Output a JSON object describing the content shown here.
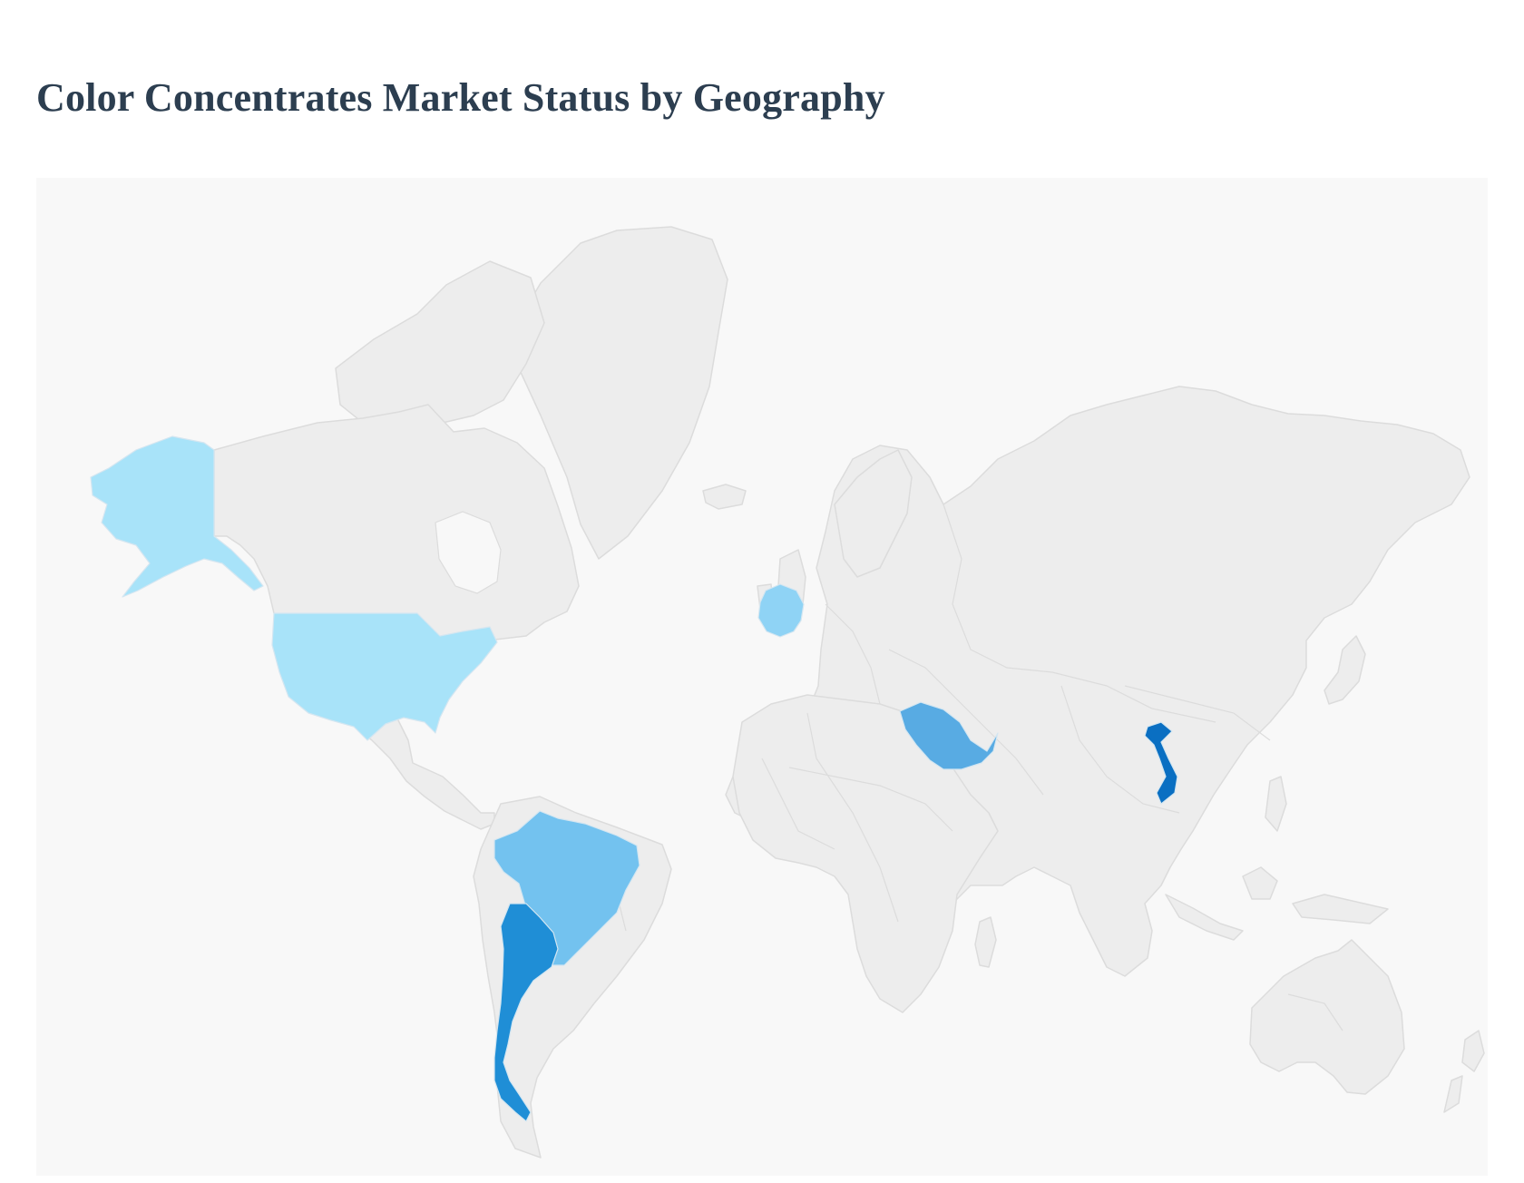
{
  "title": "Color Concentrates Market Status by Geography",
  "map": {
    "base_land_color": "#ededed",
    "ocean_color": "#f8f8f8",
    "highlighted_countries": [
      {
        "name": "United States",
        "color": "#a8e3f9"
      },
      {
        "name": "Germany",
        "color": "#8fd3f5"
      },
      {
        "name": "Brazil",
        "color": "#73c2ef"
      },
      {
        "name": "Saudi Arabia",
        "color": "#58abe3"
      },
      {
        "name": "Argentina",
        "color": "#1f8ed6"
      },
      {
        "name": "Vietnam",
        "color": "#0a6fc2"
      }
    ]
  }
}
